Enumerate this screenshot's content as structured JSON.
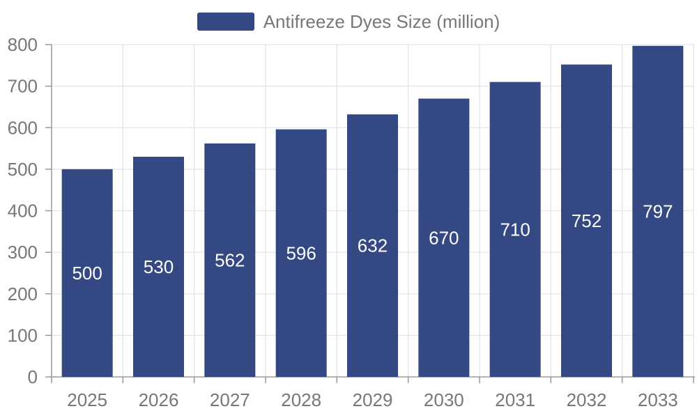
{
  "chart_data": {
    "type": "bar",
    "title": "",
    "categories": [
      "2025",
      "2026",
      "2027",
      "2028",
      "2029",
      "2030",
      "2031",
      "2032",
      "2033"
    ],
    "series": [
      {
        "name": "Antifreeze Dyes Size (million)",
        "values": [
          500,
          530,
          562,
          596,
          632,
          670,
          710,
          752,
          797
        ]
      }
    ],
    "xlabel": "",
    "ylabel": "",
    "ylim": [
      0,
      800
    ],
    "yticks": [
      0,
      100,
      200,
      300,
      400,
      500,
      600,
      700,
      800
    ],
    "grid": true,
    "legend_position": "top-center",
    "value_label_position": "inside-middle",
    "colors": {
      "bar": "#344983",
      "value_label": "#ffffff",
      "grid_line": "#e2e4ec",
      "axis_line": "#999999",
      "axis_text": "#74777c",
      "legend_text": "#74777c",
      "background": "#ffffff"
    }
  }
}
